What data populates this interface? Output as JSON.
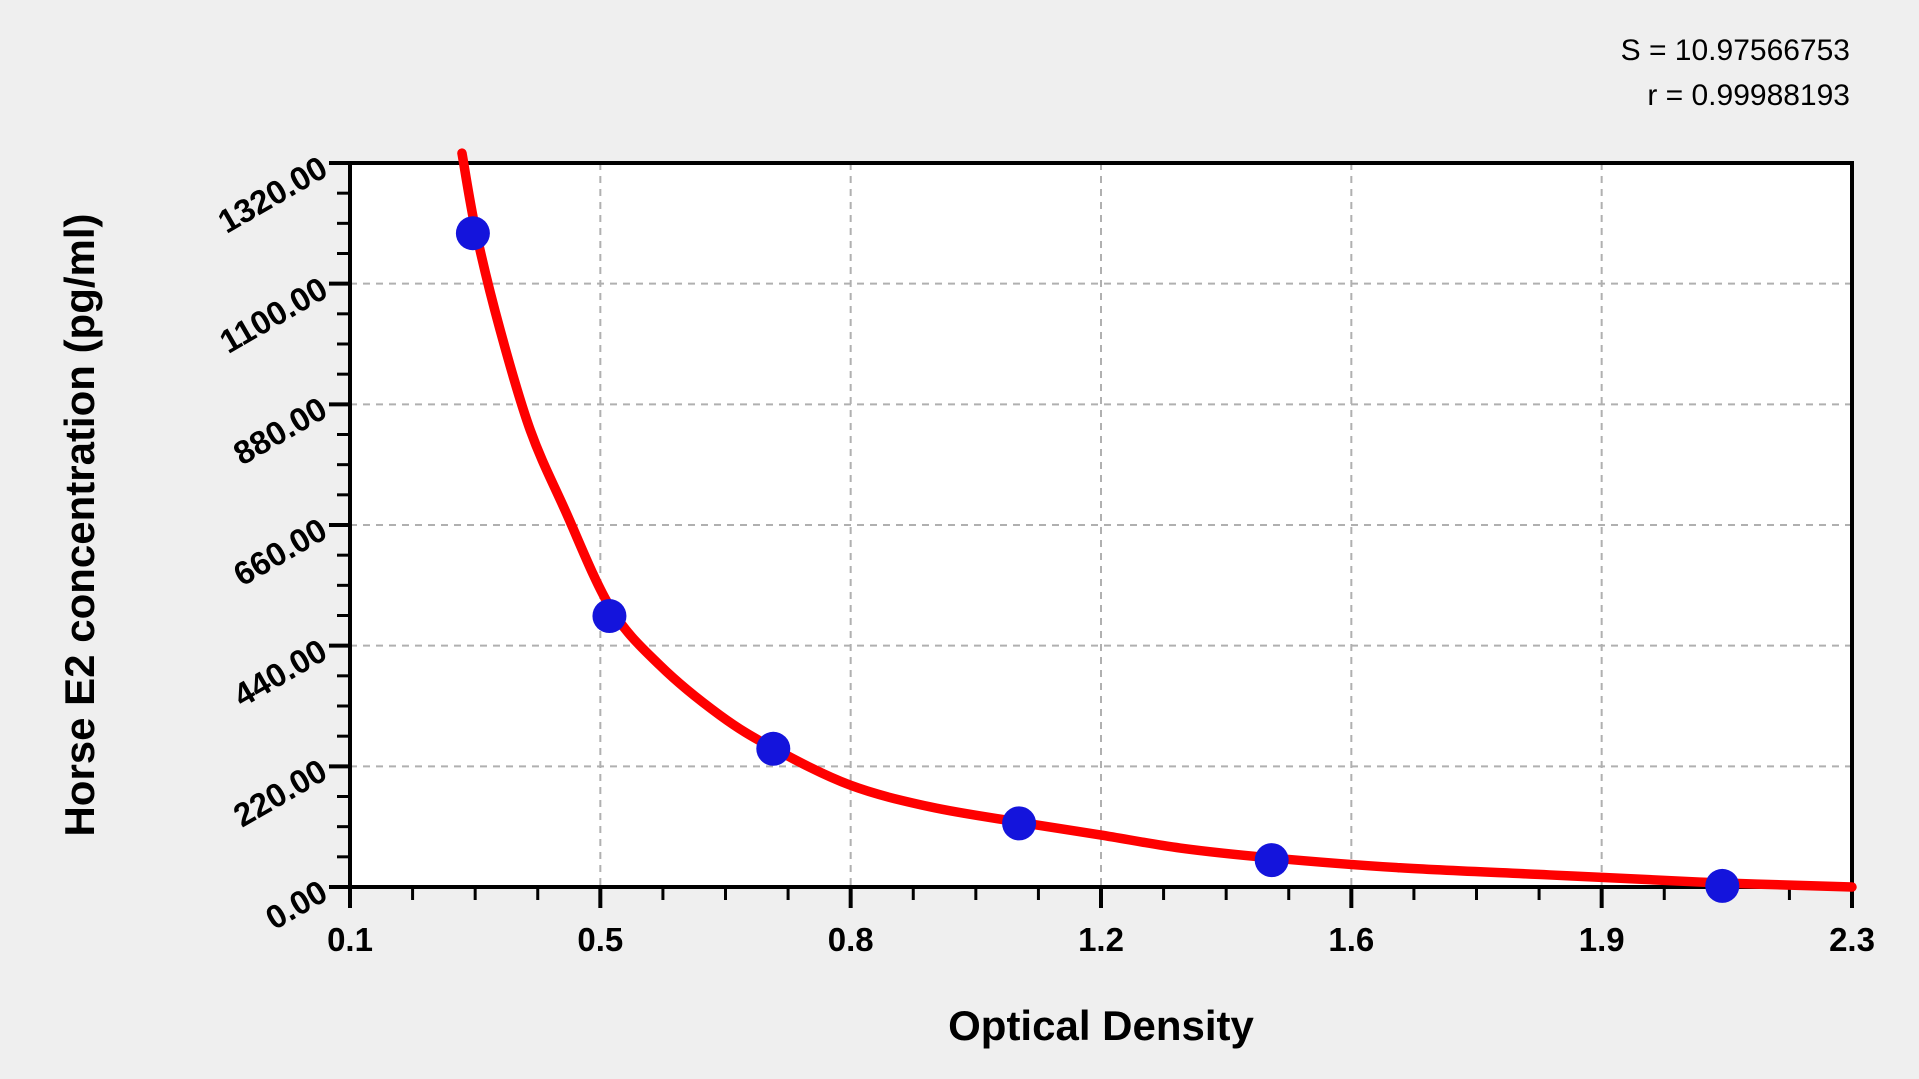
{
  "page": {
    "background_color": "#efefef",
    "plot_background_color": "#ffffff"
  },
  "stats": {
    "s_label": "S = 10.97566753",
    "r_label": "r = 0.99988193"
  },
  "chart_data": {
    "type": "scatter",
    "title": "",
    "xlabel": "Optical Density",
    "ylabel": "Horse E2 concentration (pg/ml)",
    "x_axis": {
      "min": 0.1,
      "max": 2.3,
      "major_tick_labels": [
        "0.1",
        "0.5",
        "0.8",
        "1.2",
        "1.6",
        "1.9",
        "2.3"
      ],
      "minor_divisions_per_major": 4,
      "ticks_equally_spaced": true
    },
    "y_axis": {
      "min": 0,
      "max": 1320,
      "major_tick_labels": [
        "0.00",
        "220.00",
        "440.00",
        "660.00",
        "880.00",
        "1100.00",
        "1320.00"
      ],
      "minor_divisions_per_major": 4
    },
    "grid": {
      "style": "dashed",
      "color": "#b0b0b0"
    },
    "legend": "none",
    "fit_stats": {
      "S": 10.97566753,
      "r": 0.99988193
    },
    "series": [
      {
        "name": "fitted-standard-curve",
        "type": "line",
        "color": "#fe0000",
        "stroke_width": 9.5,
        "points": [
          [
            0.264,
            1338
          ],
          [
            0.285,
            1192
          ],
          [
            0.32,
            1015
          ],
          [
            0.364,
            833
          ],
          [
            0.415,
            687
          ],
          [
            0.482,
            508
          ],
          [
            0.554,
            404
          ],
          [
            0.642,
            313
          ],
          [
            0.72,
            253
          ],
          [
            0.832,
            186
          ],
          [
            0.95,
            146
          ],
          [
            1.081,
            118
          ],
          [
            1.199,
            95
          ],
          [
            1.316,
            71
          ],
          [
            1.45,
            53
          ],
          [
            1.638,
            35
          ],
          [
            1.857,
            22
          ],
          [
            2.077,
            9
          ],
          [
            2.3,
            0
          ]
        ]
      },
      {
        "name": "standard-points",
        "type": "scatter",
        "color": "#1414dc",
        "marker": "circle",
        "marker_radius": 17,
        "points": [
          [
            0.28,
            1192
          ],
          [
            0.48,
            494
          ],
          [
            0.72,
            252
          ],
          [
            1.08,
            116
          ],
          [
            1.45,
            49
          ],
          [
            2.11,
            2
          ]
        ]
      }
    ]
  }
}
